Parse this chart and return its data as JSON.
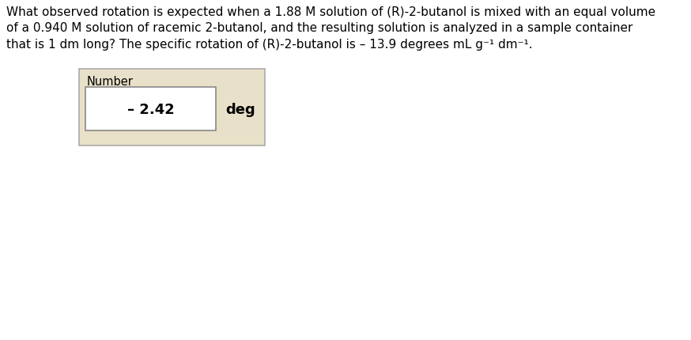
{
  "question_line1": "What observed rotation is expected when a 1.88 M solution of (R)-2-butanol is mixed with an equal volume",
  "question_line2": "of a 0.940 M solution of racemic 2-butanol, and the resulting solution is analyzed in a sample container",
  "question_line3": "that is 1 dm long? The specific rotation of (R)-2-butanol is – 13.9 degrees mL g⁻¹ dm⁻¹.",
  "label_number": "Number",
  "value": "– 2.42",
  "unit": "deg",
  "bg_color": "#ffffff",
  "box_outer_color": "#e8e0c8",
  "box_inner_color": "#ffffff",
  "text_color": "#000000",
  "question_fontsize": 11.0,
  "label_fontsize": 10.5,
  "value_fontsize": 13,
  "unit_fontsize": 13,
  "outer_border_color": "#aaaaaa",
  "inner_border_color": "#888888"
}
